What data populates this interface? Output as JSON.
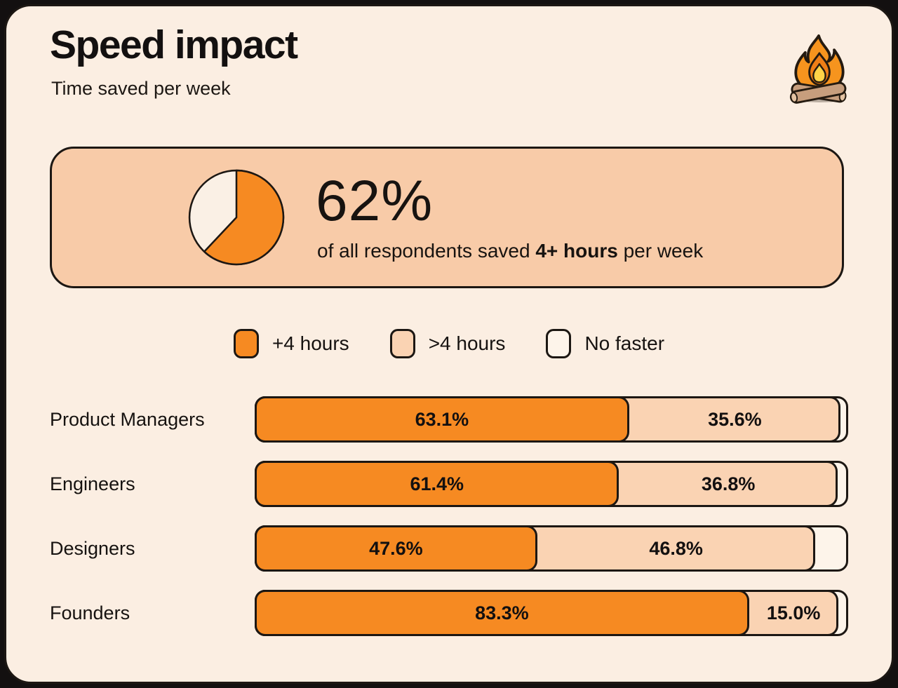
{
  "header": {
    "title": "Speed impact",
    "subtitle": "Time saved per week"
  },
  "stat": {
    "value": "62%",
    "pie_percent": 62,
    "desc_prefix": "of all respondents saved ",
    "desc_bold": "4+ hours",
    "desc_suffix": " per week"
  },
  "legend": {
    "items": [
      {
        "label": "+4 hours",
        "color": "#F68A22"
      },
      {
        "label": ">4 hours",
        "color": "#FAD3B3"
      },
      {
        "label": "No faster",
        "color": "#FDF4EA"
      }
    ]
  },
  "chart_data": {
    "type": "bar",
    "orientation": "horizontal",
    "stacked": true,
    "unit": "percent",
    "title": "Speed impact",
    "subtitle": "Time saved per week",
    "categories": [
      "Product Managers",
      "Engineers",
      "Designers",
      "Founders"
    ],
    "series": [
      {
        "name": "+4 hours",
        "color": "#F68A22",
        "show_labels": true,
        "values": [
          63.1,
          61.4,
          47.6,
          83.3
        ]
      },
      {
        "name": ">4 hours",
        "color": "#FAD3B3",
        "show_labels": true,
        "values": [
          35.6,
          36.8,
          46.8,
          15.0
        ]
      },
      {
        "name": "No faster",
        "color": "#FDF4EA",
        "show_labels": false,
        "values": [
          1.3,
          1.8,
          5.6,
          1.7
        ]
      }
    ],
    "xlim": [
      0,
      100
    ],
    "legend_position": "top-center",
    "highlight": {
      "value": 62,
      "text": "62% of all respondents saved 4+ hours per week"
    }
  },
  "colors": {
    "frame_bg": "#131010",
    "page_bg": "#FBEEE2",
    "card_bg": "#F8CBA8",
    "outline": "#1C1713",
    "orange": "#F68A22",
    "peach": "#FAD3B3",
    "cream": "#FDF4EA",
    "pie_rest": "#FAF0E5",
    "text": "#161210"
  }
}
